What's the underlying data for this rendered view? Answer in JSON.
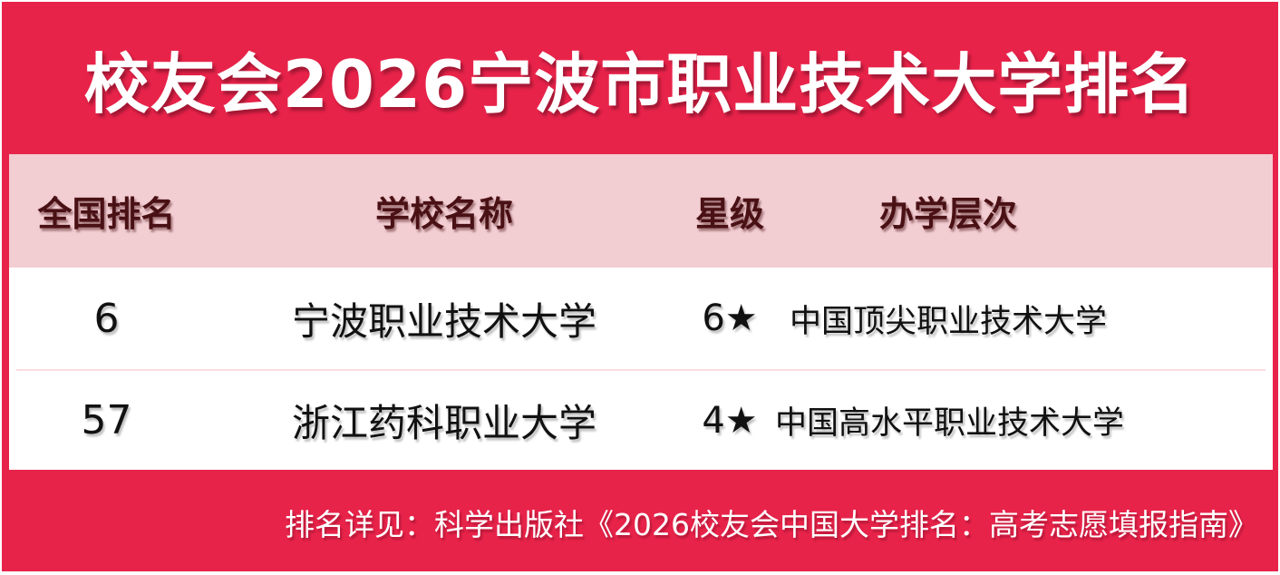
{
  "title": "校友会2026宁波市职业技术大学排名",
  "table": {
    "headers": [
      "全国排名",
      "学校名称",
      "星级",
      "办学层次"
    ],
    "rows": [
      {
        "rank": "6",
        "school": "宁波职业技术大学",
        "stars": "6★",
        "level": "中国顶尖职业技术大学"
      },
      {
        "rank": "57",
        "school": "浙江药科职业大学",
        "stars": "4★",
        "level": "中国高水平职业技术大学"
      }
    ]
  },
  "footer": {
    "note": "排名详见：科学出版社《2026校友会中国大学排名：高考志愿填报指南》"
  },
  "colors": {
    "background_red": "#e8234a",
    "header_pink": "#f2cdd2",
    "header_text_maroon": "#4a1115",
    "row_divider_pink": "#fadde1",
    "title_white": "#ffffff",
    "body_text_black": "#111111"
  },
  "chart_data": {
    "type": "table",
    "title": "校友会2026宁波市职业技术大学排名",
    "columns": [
      "全国排名",
      "学校名称",
      "星级",
      "办学层次"
    ],
    "rows": [
      [
        "6",
        "宁波职业技术大学",
        "6★",
        "中国顶尖职业技术大学"
      ],
      [
        "57",
        "浙江药科职业大学",
        "4★",
        "中国高水平职业技术大学"
      ]
    ],
    "source_note": "排名详见：科学出版社《2026校友会中国大学排名：高考志愿填报指南》"
  }
}
